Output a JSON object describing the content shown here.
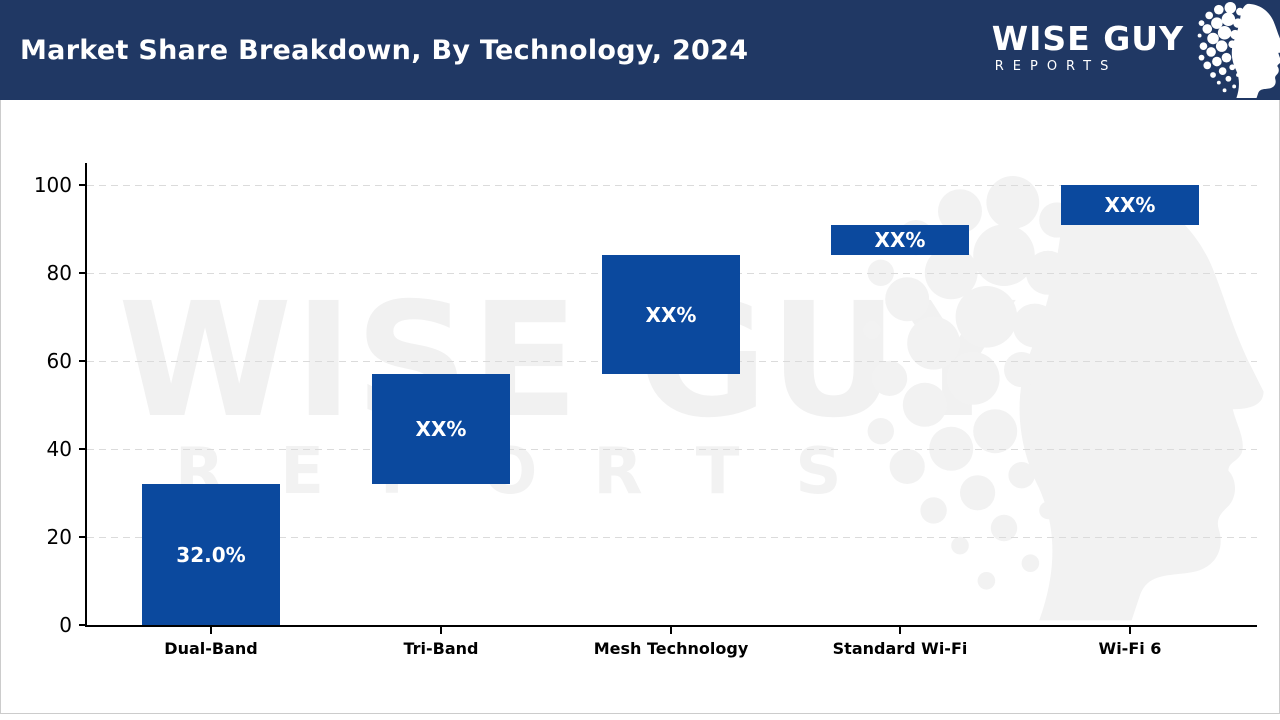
{
  "header": {
    "title": "Market Share Breakdown, By Technology, 2024",
    "logo": {
      "wordmark": "WISE GUY",
      "subtitle": "REPORTS"
    }
  },
  "watermark": {
    "wordmark": "WISE GUY",
    "subtitle": "REPORTS"
  },
  "chart_data": {
    "type": "bar",
    "subtype": "waterfall",
    "title": "Market Share Breakdown, By Technology, 2024",
    "xlabel": "",
    "ylabel": "",
    "categories": [
      "Dual-Band",
      "Tri-Band",
      "Mesh Technology",
      "Standard Wi-Fi",
      "Wi-Fi 6"
    ],
    "segments": [
      {
        "category": "Dual-Band",
        "start": 0,
        "end": 32,
        "value": 32,
        "label": "32.0%"
      },
      {
        "category": "Tri-Band",
        "start": 32,
        "end": 57,
        "value": 25,
        "label": "XX%"
      },
      {
        "category": "Mesh Technology",
        "start": 57,
        "end": 84,
        "value": 27,
        "label": "XX%"
      },
      {
        "category": "Standard Wi-Fi",
        "start": 84,
        "end": 91,
        "value": 7,
        "label": "XX%"
      },
      {
        "category": "Wi-Fi 6",
        "start": 91,
        "end": 100,
        "value": 9,
        "label": "XX%"
      }
    ],
    "yticks": [
      0,
      20,
      40,
      60,
      80,
      100
    ],
    "ylim": [
      0,
      105
    ],
    "grid": "horizontal-dashed",
    "legend": "none",
    "colors": {
      "bar": "#0B499E",
      "bar_label": "#FFFFFF",
      "grid": "#DBDBDB",
      "axis": "#000000"
    }
  },
  "colors": {
    "header_bg": "#203864",
    "header_text": "#FFFFFF",
    "canvas_bg": "#FFFFFF",
    "canvas_border": "#CCCCCC",
    "watermark": "#F1F1F1"
  }
}
